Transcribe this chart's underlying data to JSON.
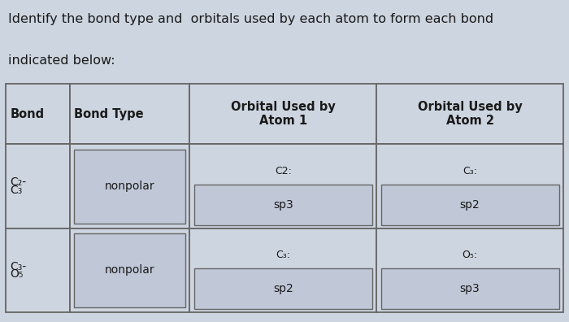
{
  "title_line1": "Identify the bond type and  orbitals used by each atom to form each bond",
  "title_line2": "indicated below:",
  "title_fontsize": 11.5,
  "background_color": "#cdd5e0",
  "header_row": [
    "Bond",
    "Bond Type",
    "Orbital Used by\nAtom 1",
    "Orbital Used by\nAtom 2"
  ],
  "rows": [
    {
      "bond_line1": "C₂-",
      "bond_line2": "C₃",
      "bond_type": "nonpolar",
      "atom1_label": "C2:",
      "atom1_orbital": "sp3",
      "atom2_label": "C₃:",
      "atom2_orbital": "sp2"
    },
    {
      "bond_line1": "C₃-",
      "bond_line2": "O₅",
      "bond_type": "nonpolar",
      "atom1_label": "C₃:",
      "atom1_orbital": "sp2",
      "atom2_label": "O₅:",
      "atom2_orbital": "sp3"
    }
  ],
  "text_color": "#1a1a1a",
  "border_color": "#666666",
  "inner_box_color": "#c0c8d8"
}
